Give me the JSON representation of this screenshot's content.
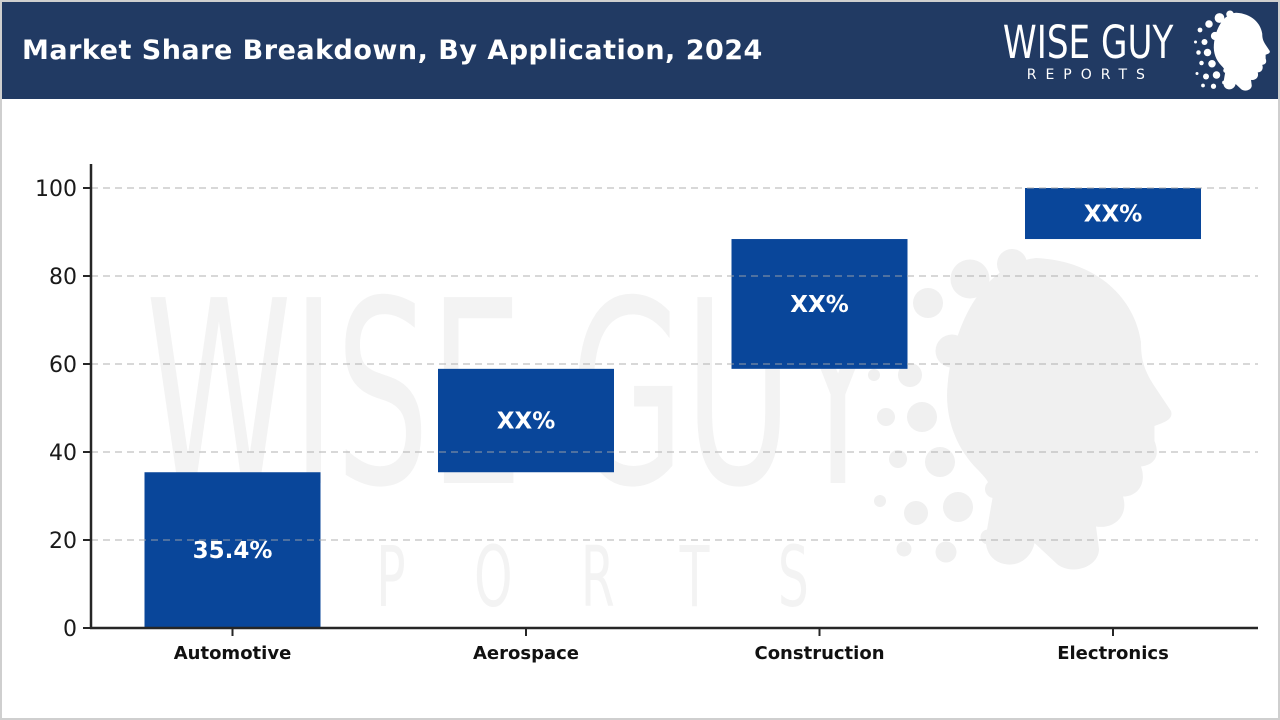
{
  "header": {
    "title": "Market Share Breakdown, By Application, 2024",
    "logo": {
      "line1": "WISE GUY",
      "line2": "REPORTS"
    }
  },
  "watermark": {
    "line1": "WISE GUY",
    "line2": "REPORTS"
  },
  "chart_data": {
    "type": "bar",
    "subtype": "waterfall",
    "title": "Market Share Breakdown, By Application, 2024",
    "categories": [
      "Automotive",
      "Aerospace",
      "Construction",
      "Electronics"
    ],
    "segments": [
      {
        "category": "Automotive",
        "start": 0,
        "end": 35.4,
        "label": "35.4%"
      },
      {
        "category": "Aerospace",
        "start": 35.4,
        "end": 58.9,
        "label": "XX%"
      },
      {
        "category": "Construction",
        "start": 58.9,
        "end": 88.4,
        "label": "XX%"
      },
      {
        "category": "Electronics",
        "start": 88.4,
        "end": 100,
        "label": "XX%"
      }
    ],
    "xlabel": "",
    "ylabel": "",
    "ylim": [
      0,
      100
    ],
    "yticks": [
      0,
      20,
      40,
      60,
      80,
      100
    ],
    "grid": "horizontal-dashed-over-bars",
    "legend": "none",
    "bar_color": "#09469a",
    "bar_label_color": "#ffffff",
    "axis_color": "#262626",
    "grid_color": "#a9a9a9",
    "tick_label_color": "#1a1a1a"
  }
}
